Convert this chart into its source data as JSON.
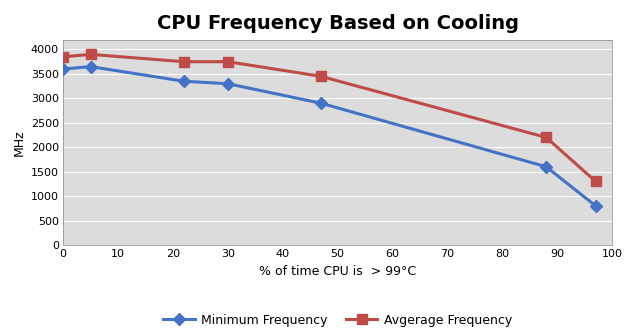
{
  "title": "CPU Frequency Based on Cooling",
  "xlabel": "% of time CPU is  > 99°C",
  "ylabel": "MHz",
  "min_x": [
    0,
    5,
    22,
    30,
    47,
    88,
    97
  ],
  "min_y": [
    3600,
    3650,
    3350,
    3300,
    2900,
    1600,
    800
  ],
  "avg_x": [
    0,
    5,
    22,
    30,
    47,
    88,
    97
  ],
  "avg_y": [
    3850,
    3900,
    3750,
    3750,
    3450,
    2200,
    1300
  ],
  "min_color": "#4472C4",
  "avg_color": "#BE4B48",
  "min_label": "Minimum Frequency",
  "avg_label": "Avgerage Frequency",
  "xlim": [
    0,
    100
  ],
  "ylim": [
    0,
    4200
  ],
  "yticks": [
    0,
    500,
    1000,
    1500,
    2000,
    2500,
    3000,
    3500,
    4000
  ],
  "xticks": [
    0,
    10,
    20,
    30,
    40,
    50,
    60,
    70,
    80,
    90,
    100
  ],
  "bg_color": "#FFFFFF",
  "plot_bg_color": "#DCDCDC",
  "grid_color": "#FFFFFF",
  "title_fontsize": 14,
  "label_fontsize": 9,
  "tick_fontsize": 8,
  "legend_fontsize": 9,
  "linewidth": 2.2,
  "min_markersize": 6,
  "avg_markersize": 7
}
